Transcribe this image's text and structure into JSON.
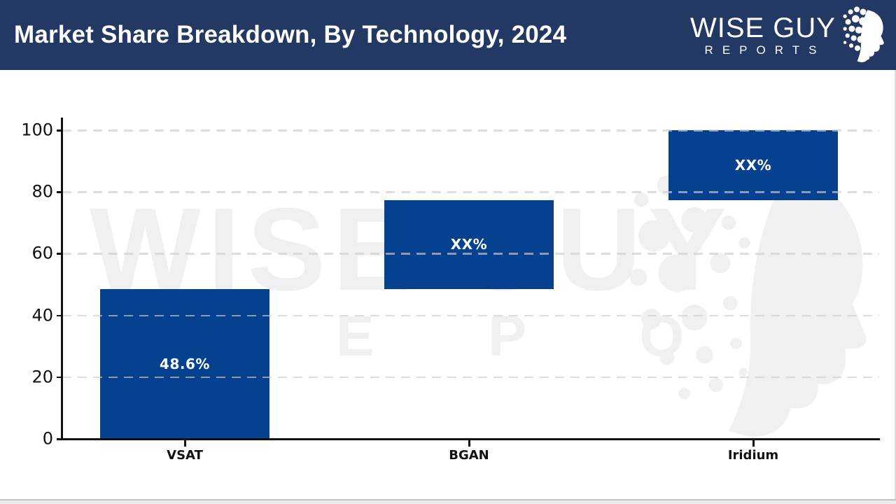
{
  "header": {
    "title": "Market Share Breakdown, By Technology, 2024",
    "bg_color": "#233863",
    "logo": {
      "brand_line1": "WISE GUY",
      "brand_line2": "REPORTS",
      "icon": "dotted-face-profile-icon"
    }
  },
  "watermark": {
    "text_line1": "WISE GUY",
    "text_line2": "R E P O R T S",
    "icon": "dotted-face-profile-watermark",
    "color": "#f0f0f2"
  },
  "chart_data": {
    "type": "bar",
    "variant": "waterfall",
    "title": "Market Share Breakdown, By Technology, 2024",
    "categories": [
      "VSAT",
      "BGAN",
      "Iridium"
    ],
    "segments": [
      {
        "category": "VSAT",
        "start": 0,
        "end": 48.6,
        "value_label": "48.6%"
      },
      {
        "category": "BGAN",
        "start": 48.6,
        "end": 77.3,
        "value_label": "XX%"
      },
      {
        "category": "Iridium",
        "start": 77.3,
        "end": 100,
        "value_label": "XX%"
      }
    ],
    "xlabel": "",
    "ylabel": "",
    "ylim": [
      0,
      100
    ],
    "yticks": [
      0,
      20,
      40,
      60,
      80,
      100
    ],
    "grid": "horizontal-dashed",
    "legend": "none",
    "bar_color": "#05418f",
    "bar_label_color": "#ffffff",
    "axis_color": "#111111",
    "tick_label_color": "#111111"
  }
}
